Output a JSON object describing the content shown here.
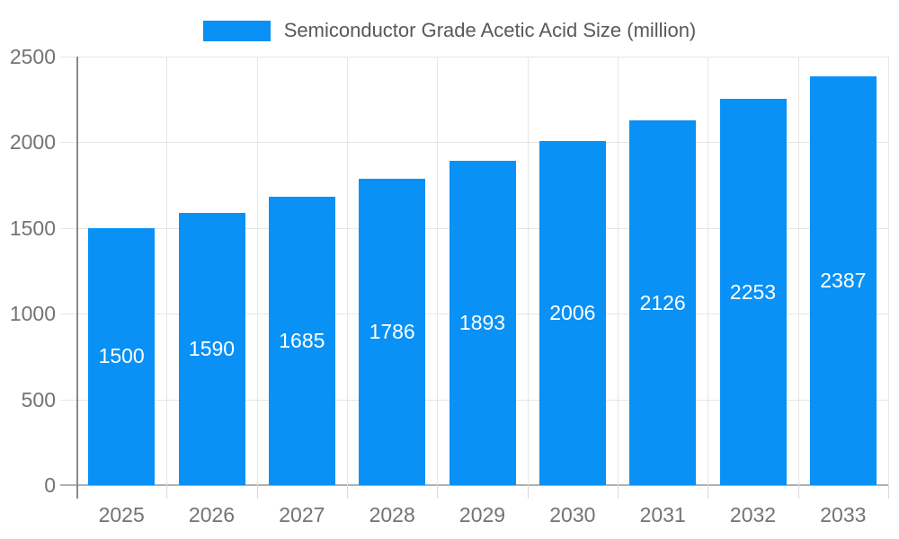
{
  "chart_data": {
    "type": "bar",
    "title": "Semiconductor Grade Acetic Acid Size (million)",
    "categories": [
      "2025",
      "2026",
      "2027",
      "2028",
      "2029",
      "2030",
      "2031",
      "2032",
      "2033"
    ],
    "values": [
      1500,
      1590,
      1685,
      1786,
      1893,
      2006,
      2126,
      2253,
      2387
    ],
    "xlabel": "",
    "ylabel": "",
    "ylim": [
      0,
      2500
    ],
    "yticks": [
      0,
      500,
      1000,
      1500,
      2000,
      2500
    ],
    "grid": "on",
    "legend_position": "top",
    "legend_entries": [
      "Semiconductor Grade Acetic Acid Size (million)"
    ],
    "bar_labels_visible": true
  },
  "legend": {
    "label": "Semiconductor Grade Acetic Acid Size (million)"
  },
  "colors": {
    "bar_fill": "#0991F5",
    "bar_label_text": "#FFFFFF",
    "gridline": "#E6E6E6",
    "y_axis_line": "#8A8A8A",
    "x_axis_line": "#B0B0B0",
    "tick_label_text": "#737373",
    "legend_text": "#58595B"
  }
}
